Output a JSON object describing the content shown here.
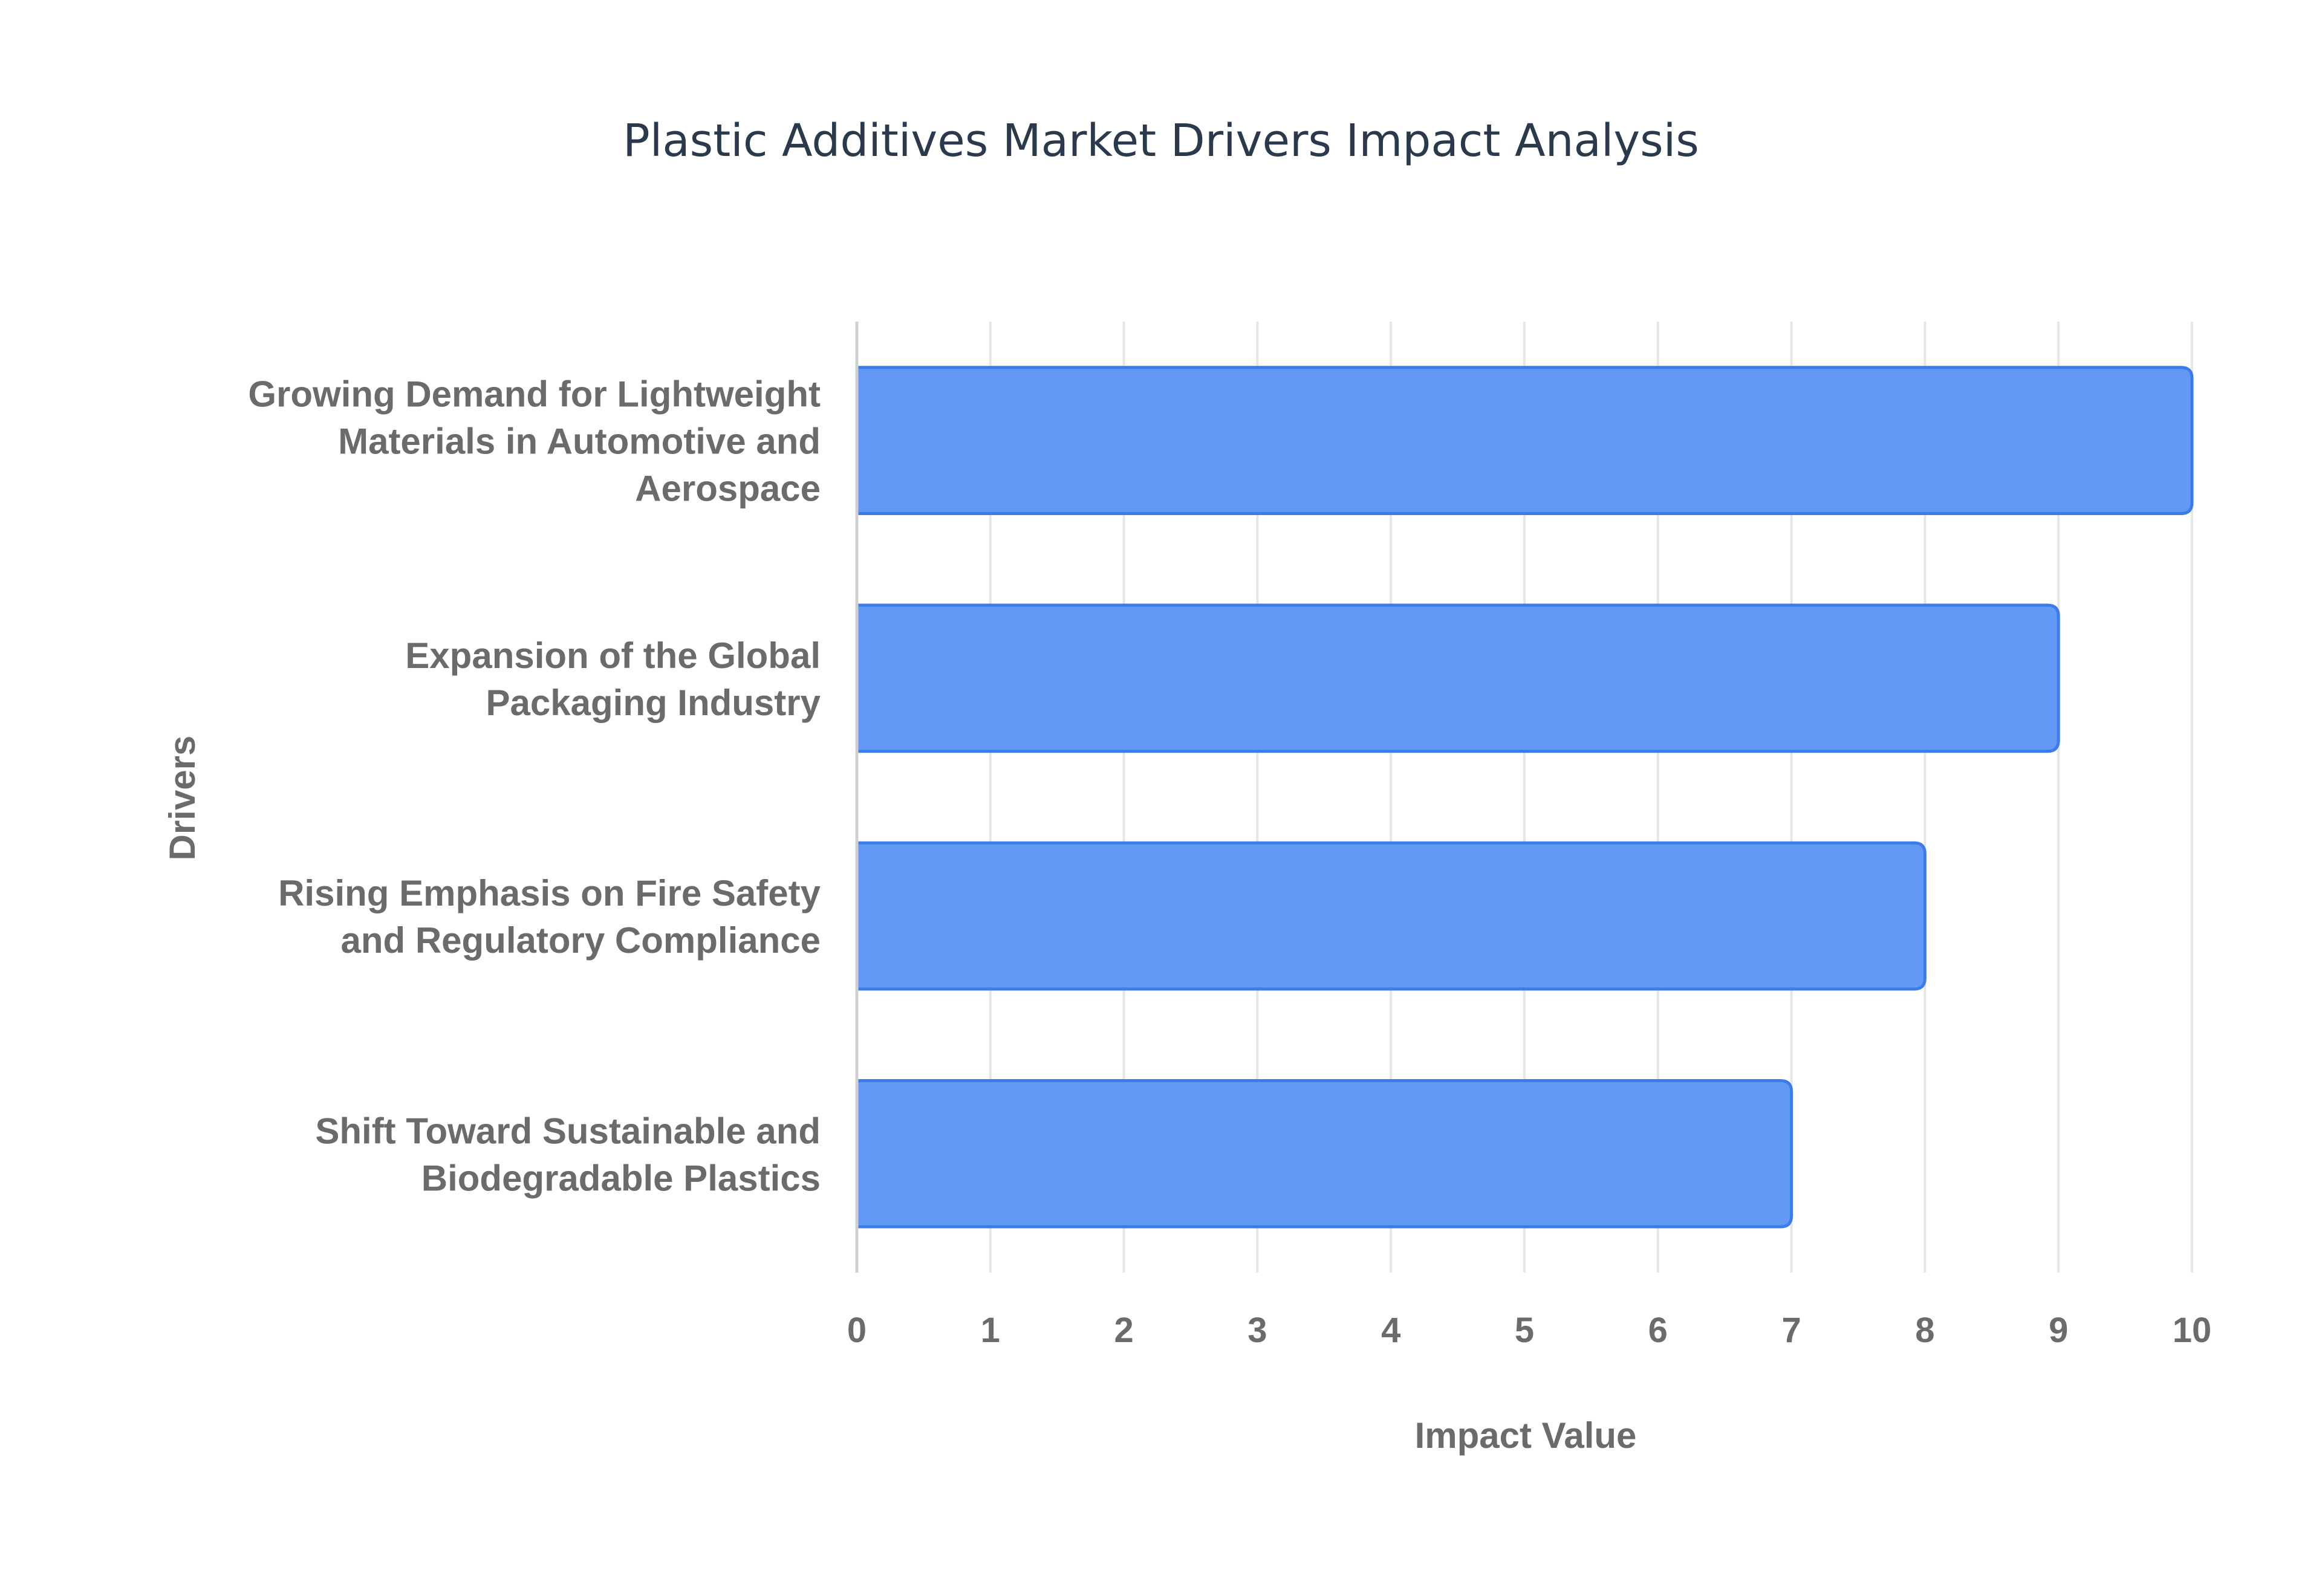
{
  "chart_data": {
    "type": "bar",
    "orientation": "horizontal",
    "title": "Plastic Additives Market Drivers Impact Analysis",
    "xlabel": "Impact Value",
    "ylabel": "Drivers",
    "xlim": [
      0,
      10
    ],
    "x_ticks": [
      0,
      1,
      2,
      3,
      4,
      5,
      6,
      7,
      8,
      9,
      10
    ],
    "grid": true,
    "legend": "none",
    "categories": [
      [
        "Growing Demand for Lightweight",
        "Materials in Automotive and",
        "Aerospace"
      ],
      [
        "Expansion of the Global",
        "Packaging Industry"
      ],
      [
        "Rising Emphasis on Fire Safety",
        "and Regulatory Compliance"
      ],
      [
        "Shift Toward Sustainable and",
        "Biodegradable Plastics"
      ]
    ],
    "values": [
      10,
      9,
      8,
      7
    ],
    "colors": {
      "bar_fill": "#6399f5",
      "bar_stroke": "#3b7de8",
      "grid": "#e6e6e6",
      "axis": "#d0d0d0",
      "title": "#2a3a4c",
      "label": "#6b6b6b"
    }
  }
}
